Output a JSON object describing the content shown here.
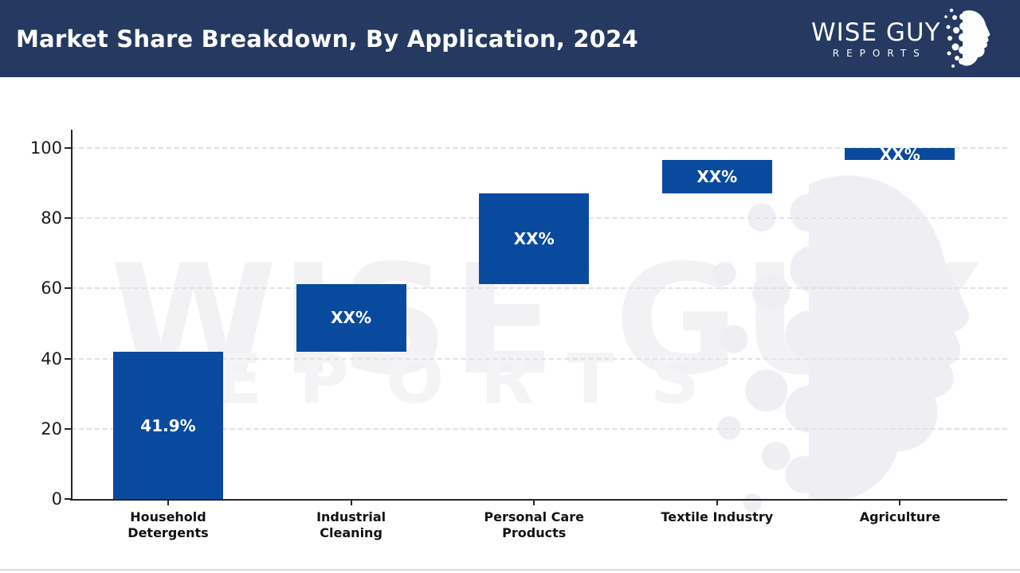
{
  "header": {
    "title": "Market Share Breakdown, By Application, 2024",
    "bg_color": "#253961",
    "logo": {
      "name": "WISE GUY",
      "sub": "REPORTS"
    }
  },
  "watermark": {
    "name": "WISE GUY",
    "sub": "REPORTS"
  },
  "chart_data": {
    "type": "bar",
    "subtype": "waterfall",
    "title": "Market Share Breakdown, By Application, 2024",
    "unit": "%",
    "categories": [
      "Household Detergents",
      "Industrial Cleaning",
      "Personal Care Products",
      "Textile Industry",
      "Agriculture"
    ],
    "category_lines": [
      [
        "Household",
        "Detergents"
      ],
      [
        "Industrial",
        "Cleaning"
      ],
      [
        "Personal Care",
        "Products"
      ],
      [
        "Textile Industry"
      ],
      [
        "Agriculture"
      ]
    ],
    "bars": [
      {
        "start": 0,
        "end": 41.9,
        "value": 41.9,
        "label": "41.9%"
      },
      {
        "start": 41.9,
        "end": 61.3,
        "value": 19.4,
        "label": "XX%"
      },
      {
        "start": 61.3,
        "end": 87.0,
        "value": 25.7,
        "label": "XX%"
      },
      {
        "start": 87.0,
        "end": 96.5,
        "value": 9.5,
        "label": "XX%"
      },
      {
        "start": 96.5,
        "end": 100.0,
        "value": 3.5,
        "label": "XX%"
      }
    ],
    "yticks": [
      0,
      20,
      40,
      60,
      80,
      100
    ],
    "ylim": [
      0,
      105
    ],
    "grid": "dashed-horizontal",
    "legend": "none",
    "bar_color": "#0a4a9e",
    "bar_label_color": "#ffffff",
    "axis_color": "#262626"
  }
}
